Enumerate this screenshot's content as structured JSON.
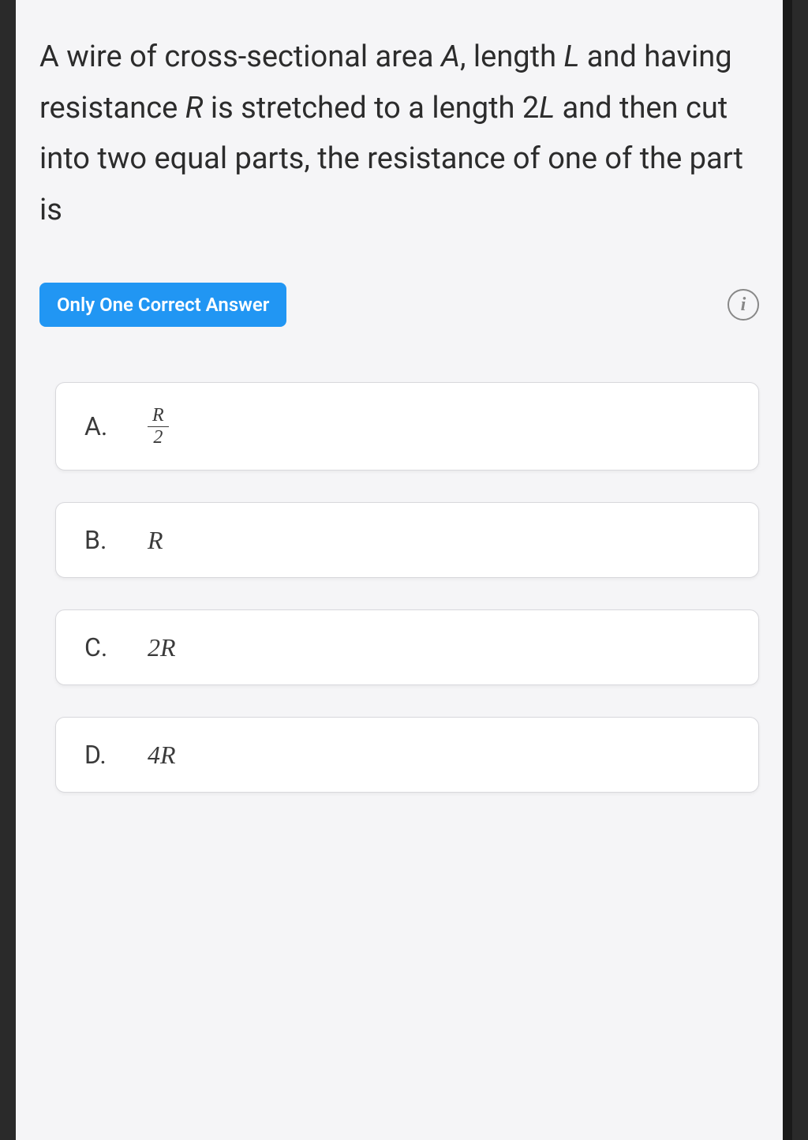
{
  "question": {
    "text_parts": [
      {
        "text": "A wire of cross-sectional area ",
        "italic": false
      },
      {
        "text": "A",
        "italic": true
      },
      {
        "text": ", length ",
        "italic": false
      },
      {
        "text": "L",
        "italic": true
      },
      {
        "text": " and having resistance ",
        "italic": false
      },
      {
        "text": "R",
        "italic": true
      },
      {
        "text": " is stretched to a length 2",
        "italic": false
      },
      {
        "text": "L",
        "italic": true
      },
      {
        "text": " and then cut into two equal parts, the resistance of one of the part is",
        "italic": false
      }
    ]
  },
  "badge": {
    "label": "Only One Correct Answer",
    "background_color": "#2196f3",
    "text_color": "#ffffff"
  },
  "info_icon": {
    "symbol": "i"
  },
  "options": [
    {
      "label": "A.",
      "type": "fraction",
      "numerator": "R",
      "denominator": "2"
    },
    {
      "label": "B.",
      "type": "plain",
      "value": "R"
    },
    {
      "label": "C.",
      "type": "plain",
      "value": "2R"
    },
    {
      "label": "D.",
      "type": "plain",
      "value": "4R"
    }
  ],
  "styling": {
    "screen_background": "#f5f5f7",
    "option_background": "#ffffff",
    "option_border": "#d8d8dc",
    "text_color": "#2c2c2c",
    "question_fontsize": 38,
    "option_fontsize": 32,
    "badge_fontsize": 24
  }
}
